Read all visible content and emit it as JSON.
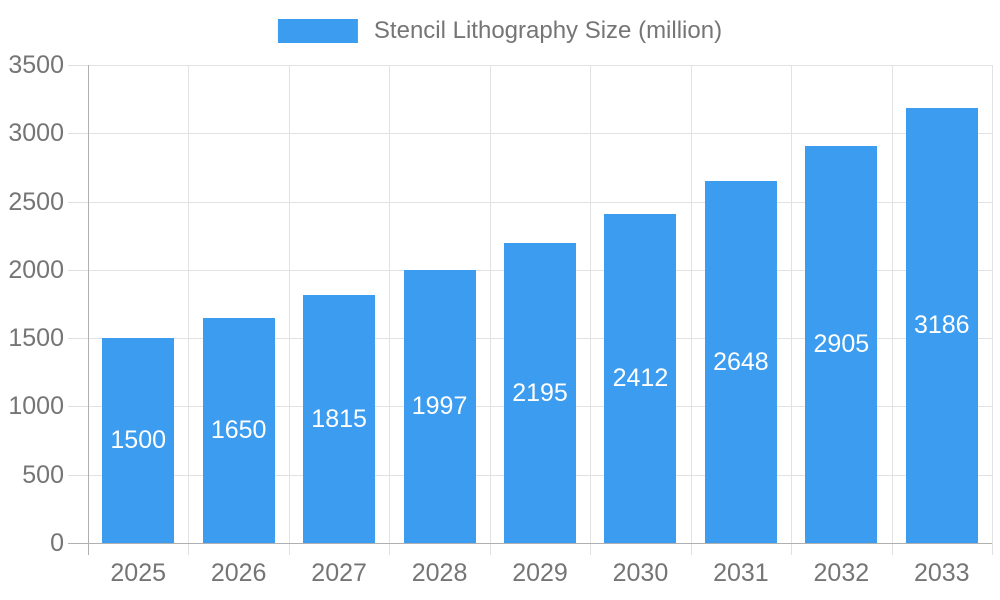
{
  "chart_data": {
    "type": "bar",
    "title": "Stencil Lithography Size (million)",
    "categories": [
      "2025",
      "2026",
      "2027",
      "2028",
      "2029",
      "2030",
      "2031",
      "2032",
      "2033"
    ],
    "values": [
      1500,
      1650,
      1815,
      1997,
      2195,
      2412,
      2648,
      2905,
      3186
    ],
    "series_name": "Stencil Lithography Size (million)",
    "xlabel": "",
    "ylabel": "",
    "ylim": [
      0,
      3500
    ],
    "ytick_step": 500,
    "ytick_labels": [
      "0",
      "500",
      "1000",
      "1500",
      "2000",
      "2500",
      "3000",
      "3500"
    ],
    "grid": "both",
    "legend_position": "top-center",
    "value_labels": "inside-center"
  },
  "colors": {
    "bar": "#3b9cf0",
    "grid": "#e2e2e2",
    "tick": "#e0e0e0",
    "axis": "#b0b0b0",
    "axis_text": "#757575",
    "legend_text": "#757575",
    "value_text": "#ffffff",
    "background": "#ffffff"
  }
}
